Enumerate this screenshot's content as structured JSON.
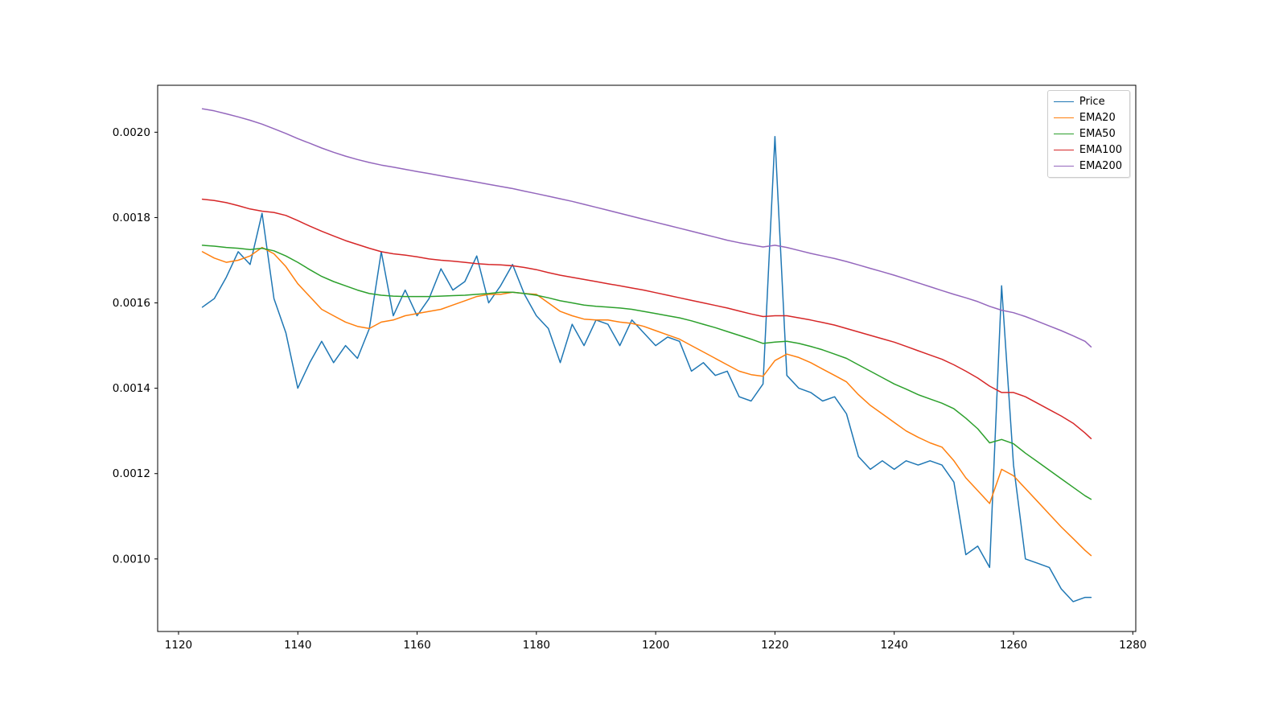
{
  "figure": {
    "background": "#ffffff",
    "frame_color": "#000000",
    "tick_label_color": "#000000"
  },
  "legend": {
    "position": "upper right",
    "labels": [
      "Price",
      "EMA20",
      "EMA50",
      "EMA100",
      "EMA200"
    ]
  },
  "chart_data": {
    "type": "line",
    "title": "",
    "xlabel": "",
    "ylabel": "",
    "grid": false,
    "legend_position": "upper right",
    "xlim": [
      1116.5,
      1280.5
    ],
    "ylim": [
      0.00083,
      0.00211
    ],
    "x_ticks": [
      1120,
      1140,
      1160,
      1180,
      1200,
      1220,
      1240,
      1260,
      1280
    ],
    "y_ticks": [
      0.001,
      0.0012,
      0.0014,
      0.0016,
      0.0018,
      0.002
    ],
    "y_tick_labels": [
      "0.0010",
      "0.0012",
      "0.0014",
      "0.0016",
      "0.0018",
      "0.0020"
    ],
    "x": [
      1124,
      1126,
      1128,
      1130,
      1132,
      1134,
      1136,
      1138,
      1140,
      1142,
      1144,
      1146,
      1148,
      1150,
      1152,
      1154,
      1156,
      1158,
      1160,
      1162,
      1164,
      1166,
      1168,
      1170,
      1172,
      1174,
      1176,
      1178,
      1180,
      1182,
      1184,
      1186,
      1188,
      1190,
      1192,
      1194,
      1196,
      1198,
      1200,
      1202,
      1204,
      1206,
      1208,
      1210,
      1212,
      1214,
      1216,
      1218,
      1220,
      1222,
      1224,
      1226,
      1228,
      1230,
      1232,
      1234,
      1236,
      1238,
      1240,
      1242,
      1244,
      1246,
      1248,
      1250,
      1252,
      1254,
      1256,
      1258,
      1260,
      1262,
      1264,
      1266,
      1268,
      1270,
      1272,
      1273
    ],
    "series": [
      {
        "name": "Price",
        "color": "#1f77b4",
        "values": [
          0.00159,
          0.00161,
          0.00166,
          0.00172,
          0.00169,
          0.00181,
          0.00161,
          0.00153,
          0.0014,
          0.00146,
          0.00151,
          0.00146,
          0.0015,
          0.00147,
          0.00154,
          0.00172,
          0.00157,
          0.00163,
          0.00157,
          0.00161,
          0.00168,
          0.00163,
          0.00165,
          0.00171,
          0.0016,
          0.00164,
          0.00169,
          0.00162,
          0.00157,
          0.00154,
          0.00146,
          0.00155,
          0.0015,
          0.00156,
          0.00155,
          0.0015,
          0.00156,
          0.00153,
          0.0015,
          0.00152,
          0.00151,
          0.00144,
          0.00146,
          0.00143,
          0.00144,
          0.00138,
          0.00137,
          0.00141,
          0.00199,
          0.00143,
          0.0014,
          0.00139,
          0.00137,
          0.00138,
          0.00134,
          0.00124,
          0.00121,
          0.00123,
          0.00121,
          0.00123,
          0.00122,
          0.00123,
          0.00122,
          0.00118,
          0.00101,
          0.00103,
          0.00098,
          0.00164,
          0.00122,
          0.001,
          0.00099,
          0.00098,
          0.00093,
          0.0009,
          0.00091,
          0.00091
        ]
      },
      {
        "name": "EMA20",
        "color": "#ff7f0e",
        "values": [
          0.00172,
          0.001705,
          0.001695,
          0.0017,
          0.00171,
          0.00173,
          0.001715,
          0.001685,
          0.001645,
          0.001615,
          0.001585,
          0.00157,
          0.001555,
          0.001545,
          0.00154,
          0.001555,
          0.00156,
          0.00157,
          0.001575,
          0.00158,
          0.001585,
          0.001595,
          0.001605,
          0.001615,
          0.00162,
          0.00162,
          0.001625,
          0.001622,
          0.00162,
          0.0016,
          0.00158,
          0.00157,
          0.001562,
          0.00156,
          0.00156,
          0.001555,
          0.001552,
          0.001545,
          0.001535,
          0.001525,
          0.001515,
          0.0015,
          0.001485,
          0.00147,
          0.001455,
          0.00144,
          0.001432,
          0.001428,
          0.001465,
          0.00148,
          0.001472,
          0.00146,
          0.001445,
          0.00143,
          0.001415,
          0.001385,
          0.00136,
          0.00134,
          0.00132,
          0.0013,
          0.001285,
          0.001272,
          0.001262,
          0.00123,
          0.00119,
          0.00116,
          0.00113,
          0.00121,
          0.001195,
          0.001165,
          0.001135,
          0.001105,
          0.001075,
          0.001048,
          0.00102,
          0.001008
        ]
      },
      {
        "name": "EMA50",
        "color": "#2ca02c",
        "values": [
          0.001735,
          0.001733,
          0.00173,
          0.001728,
          0.001725,
          0.001728,
          0.001722,
          0.00171,
          0.001695,
          0.001678,
          0.001662,
          0.00165,
          0.00164,
          0.00163,
          0.001622,
          0.001618,
          0.001616,
          0.001615,
          0.001615,
          0.001615,
          0.001616,
          0.001617,
          0.001618,
          0.00162,
          0.001622,
          0.001625,
          0.001625,
          0.001622,
          0.001618,
          0.001612,
          0.001605,
          0.0016,
          0.001595,
          0.001592,
          0.00159,
          0.001588,
          0.001585,
          0.00158,
          0.001575,
          0.00157,
          0.001565,
          0.001558,
          0.00155,
          0.001542,
          0.001533,
          0.001524,
          0.001515,
          0.001505,
          0.001508,
          0.00151,
          0.001505,
          0.001498,
          0.00149,
          0.00148,
          0.00147,
          0.001455,
          0.00144,
          0.001425,
          0.00141,
          0.001398,
          0.001385,
          0.001375,
          0.001365,
          0.001352,
          0.00133,
          0.001305,
          0.001272,
          0.00128,
          0.00127,
          0.001248,
          0.001228,
          0.001208,
          0.001188,
          0.001168,
          0.001148,
          0.00114
        ]
      },
      {
        "name": "EMA100",
        "color": "#d62728",
        "values": [
          0.001843,
          0.00184,
          0.001835,
          0.001828,
          0.00182,
          0.001815,
          0.001812,
          0.001805,
          0.001793,
          0.00178,
          0.001768,
          0.001757,
          0.001746,
          0.001737,
          0.001728,
          0.00172,
          0.001715,
          0.001712,
          0.001708,
          0.001703,
          0.0017,
          0.001698,
          0.001695,
          0.001692,
          0.00169,
          0.001689,
          0.001687,
          0.001683,
          0.001678,
          0.001671,
          0.001665,
          0.00166,
          0.001655,
          0.00165,
          0.001645,
          0.00164,
          0.001635,
          0.00163,
          0.001624,
          0.001618,
          0.001612,
          0.001606,
          0.0016,
          0.001594,
          0.001588,
          0.001581,
          0.001574,
          0.001568,
          0.00157,
          0.00157,
          0.001565,
          0.00156,
          0.001554,
          0.001548,
          0.00154,
          0.001532,
          0.001524,
          0.001516,
          0.001508,
          0.001498,
          0.001488,
          0.001478,
          0.001468,
          0.001455,
          0.00144,
          0.001424,
          0.001405,
          0.00139,
          0.00139,
          0.00138,
          0.001365,
          0.00135,
          0.001335,
          0.001318,
          0.001295,
          0.001282
        ]
      },
      {
        "name": "EMA200",
        "color": "#9467bd",
        "values": [
          0.002055,
          0.00205,
          0.002043,
          0.002036,
          0.002028,
          0.002019,
          0.002008,
          0.001997,
          0.001985,
          0.001974,
          0.001963,
          0.001953,
          0.001944,
          0.001936,
          0.001929,
          0.001923,
          0.001918,
          0.001913,
          0.001908,
          0.001903,
          0.001898,
          0.001893,
          0.001888,
          0.001883,
          0.001878,
          0.001873,
          0.001868,
          0.001862,
          0.001856,
          0.00185,
          0.001844,
          0.001838,
          0.001831,
          0.001824,
          0.001817,
          0.00181,
          0.001803,
          0.001796,
          0.001789,
          0.001782,
          0.001775,
          0.001768,
          0.001761,
          0.001754,
          0.001747,
          0.001741,
          0.001736,
          0.001731,
          0.001735,
          0.00173,
          0.001723,
          0.001716,
          0.00171,
          0.001704,
          0.001697,
          0.001689,
          0.001681,
          0.001673,
          0.001665,
          0.001656,
          0.001647,
          0.001638,
          0.001629,
          0.00162,
          0.001612,
          0.001603,
          0.001592,
          0.001583,
          0.001577,
          0.001568,
          0.001557,
          0.001546,
          0.001535,
          0.001523,
          0.00151,
          0.001497
        ]
      }
    ]
  }
}
